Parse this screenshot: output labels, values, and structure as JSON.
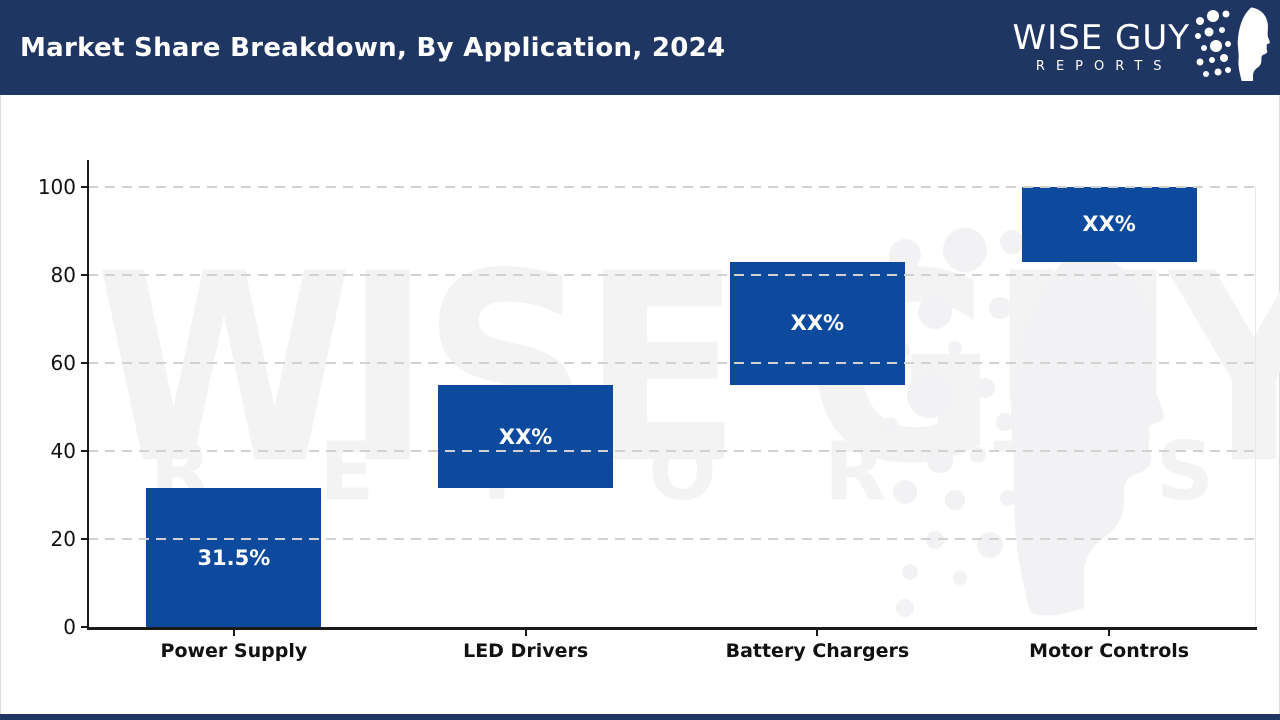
{
  "header": {
    "title": "Market Share Breakdown, By Application, 2024",
    "background": "#1f3663",
    "logo": {
      "name": "WISE GUY",
      "sub": "REPORTS"
    }
  },
  "watermark": {
    "name": "WISE GUY",
    "sub": "R E P O R T S"
  },
  "chart_data": {
    "type": "bar",
    "subtype": "waterfall",
    "title": "Market Share Breakdown, By Application, 2024",
    "categories": [
      "Power Supply",
      "LED Drivers",
      "Battery Chargers",
      "Motor Controls"
    ],
    "series": [
      {
        "name": "Market Share (%)",
        "segments": [
          {
            "category": "Power Supply",
            "start": 0,
            "end": 31.5,
            "label": "31.5%"
          },
          {
            "category": "LED Drivers",
            "start": 31.5,
            "end": 55,
            "label": "XX%"
          },
          {
            "category": "Battery Chargers",
            "start": 55,
            "end": 83,
            "label": "XX%"
          },
          {
            "category": "Motor Controls",
            "start": 83,
            "end": 100,
            "label": "XX%"
          }
        ]
      }
    ],
    "ylim": [
      0,
      100
    ],
    "yticks": [
      0,
      20,
      40,
      60,
      80,
      100
    ],
    "grid": "horizontal-dashed",
    "legend": "none",
    "colors": {
      "bar": "#0d4a9e",
      "bar_label": "#ffffff",
      "grid": "#d2d2d2",
      "axis": "#1a1a1a",
      "header_bg": "#1f3663",
      "watermark": "#f3f3f4"
    }
  }
}
